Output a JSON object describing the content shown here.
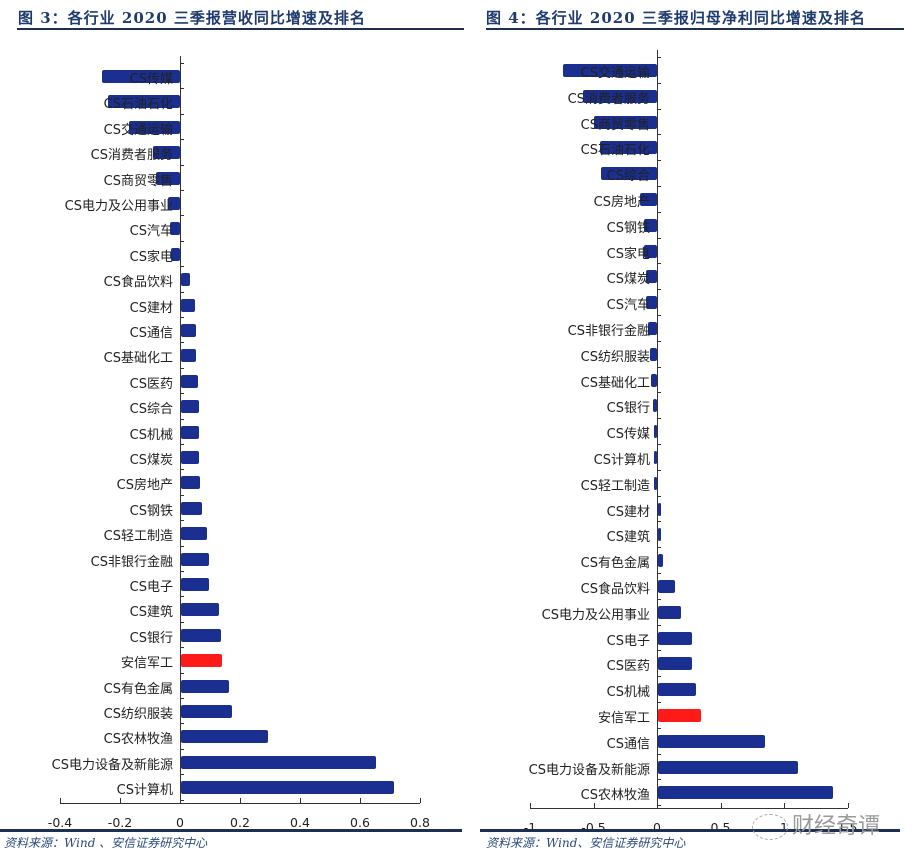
{
  "left": {
    "title": "图 3：各行业 2020 三季报营收同比增速及排名",
    "source": "资料来源：Wind 、安信证券研究中心"
  },
  "right": {
    "title": "图 4：各行业 2020 三季报归母净利同比增速及排名",
    "source": "资料来源：Wind、安信证券研究中心"
  },
  "watermark": "财经奇谭",
  "colors": {
    "bar": "#1a2f8f",
    "highlight": "#ff1a1a",
    "title": "#1f3a6e",
    "rule": "#1f2f4f"
  },
  "chart_data": [
    {
      "type": "bar",
      "orientation": "horizontal",
      "title": "图 3：各行业 2020 三季报营收同比增速及排名",
      "xlabel": "",
      "ylabel": "",
      "xlim": [
        -0.4,
        0.8
      ],
      "xticks": [
        "-0.4",
        "-0.2",
        "0",
        "0.2",
        "0.4",
        "0.6",
        "0.8"
      ],
      "grid": false,
      "highlight": "安信军工",
      "categories": [
        "CS传媒",
        "CS石油石化",
        "CS交通运输",
        "CS消费者服务",
        "CS商贸零售",
        "CS电力及公用事业",
        "CS汽车",
        "CS家电",
        "CS食品饮料",
        "CS建材",
        "CS通信",
        "CS基础化工",
        "CS医药",
        "CS综合",
        "CS机械",
        "CS煤炭",
        "CS房地产",
        "CS钢铁",
        "CS轻工制造",
        "CS非银行金融",
        "CS电子",
        "CS建筑",
        "CS银行",
        "安信军工",
        "CS有色金属",
        "CS纺织服装",
        "CS农林牧渔",
        "CS电力设备及新能源",
        "CS计算机"
      ],
      "values": [
        -0.26,
        -0.24,
        -0.17,
        -0.09,
        -0.08,
        -0.04,
        -0.035,
        -0.03,
        0.03,
        0.045,
        0.05,
        0.05,
        0.057,
        0.06,
        0.06,
        0.06,
        0.063,
        0.07,
        0.087,
        0.093,
        0.093,
        0.127,
        0.133,
        0.137,
        0.16,
        0.17,
        0.29,
        0.65,
        0.71
      ]
    },
    {
      "type": "bar",
      "orientation": "horizontal",
      "title": "图 4：各行业 2020 三季报归母净利同比增速及排名",
      "xlabel": "",
      "ylabel": "",
      "xlim": [
        -1,
        1.5
      ],
      "xticks": [
        "-1",
        "-0.5",
        "0",
        "0.5",
        "1",
        "1.5"
      ],
      "grid": false,
      "highlight": "安信军工",
      "categories": [
        "CS交通运输",
        "CS消费者服务",
        "CS商贸零售",
        "CS石油石化",
        "CS综合",
        "CS房地产",
        "CS钢铁",
        "CS家电",
        "CS煤炭",
        "CS汽车",
        "CS非银行金融",
        "CS纺织服装",
        "CS基础化工",
        "CS银行",
        "CS传媒",
        "CS计算机",
        "CS轻工制造",
        "CS建材",
        "CS建筑",
        "CS有色金属",
        "CS食品饮料",
        "CS电力及公用事业",
        "CS电子",
        "CS医药",
        "CS机械",
        "安信军工",
        "CS通信",
        "CS电力设备及新能源",
        "CS农林牧渔"
      ],
      "values": [
        -0.74,
        -0.58,
        -0.5,
        -0.45,
        -0.44,
        -0.13,
        -0.1,
        -0.1,
        -0.09,
        -0.09,
        -0.07,
        -0.055,
        -0.05,
        -0.03,
        -0.025,
        -0.015,
        -0.015,
        0.02,
        0.025,
        0.04,
        0.13,
        0.18,
        0.27,
        0.27,
        0.3,
        0.34,
        0.84,
        1.1,
        1.38
      ]
    }
  ]
}
